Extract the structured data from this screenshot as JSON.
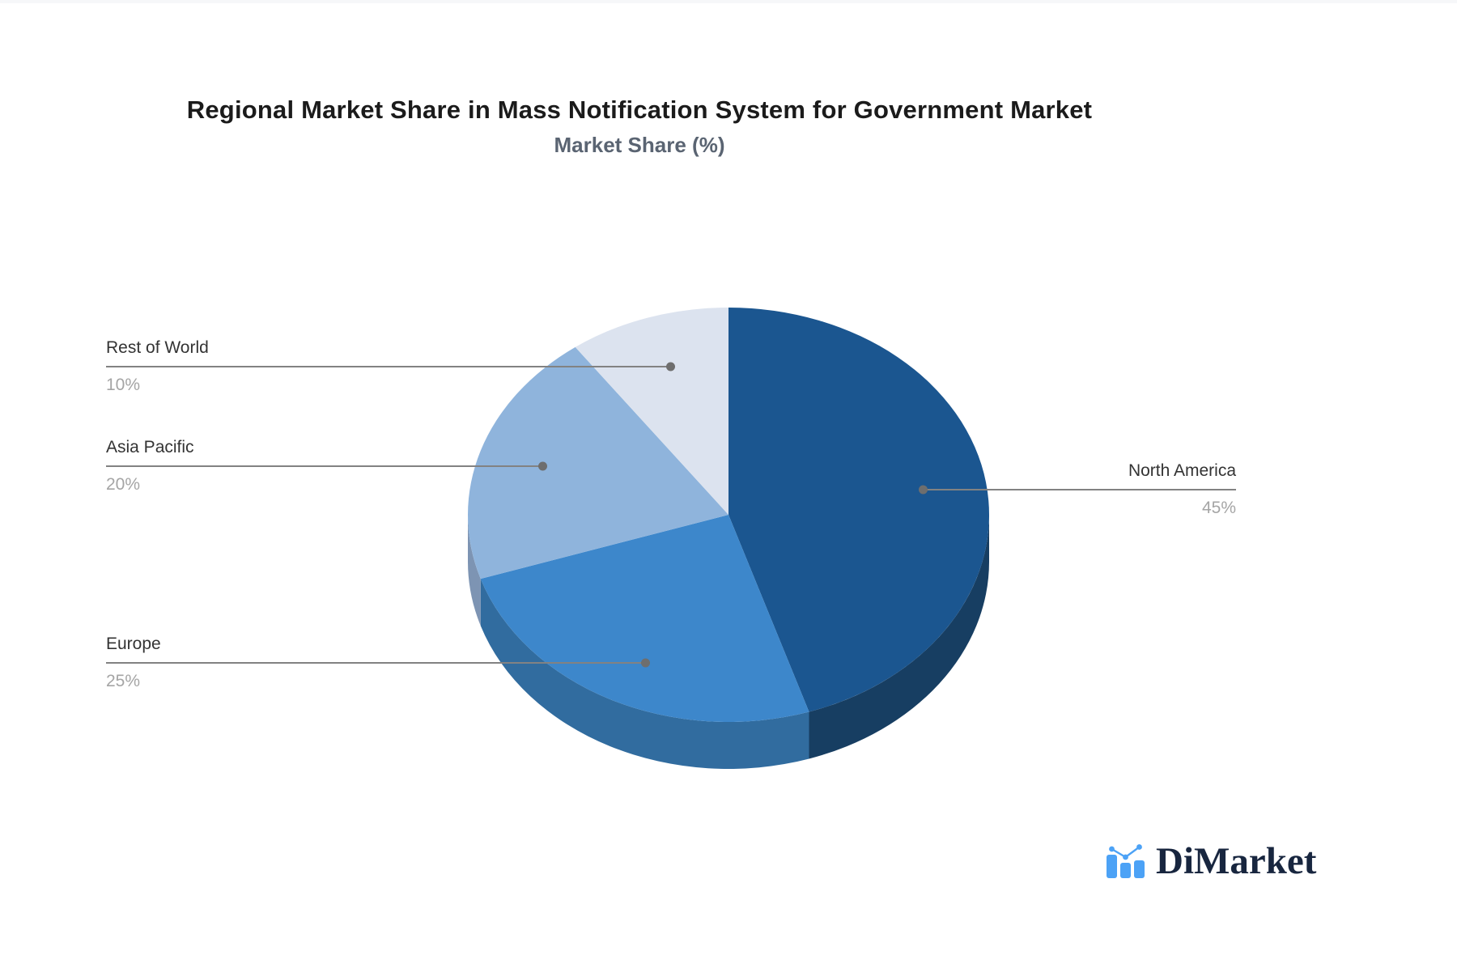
{
  "header": {
    "title": "Regional Market Share in Mass Notification System for Government Market",
    "subtitle": "Market Share (%)"
  },
  "chart_data": {
    "type": "pie",
    "style": "3d",
    "title": "Regional Market Share in Mass Notification System for Government Market",
    "subtitle": "Market Share (%)",
    "unit": "%",
    "total": 100,
    "start_angle_deg": -90,
    "direction": "clockwise",
    "legend_position": "callout-labels",
    "slices": [
      {
        "label": "North America",
        "value": 45,
        "display": "45%",
        "color": "#1B5690",
        "side_color": "#173E62"
      },
      {
        "label": "Europe",
        "value": 25,
        "display": "25%",
        "color": "#3D87CB",
        "side_color": "#316C9F"
      },
      {
        "label": "Asia Pacific",
        "value": 20,
        "display": "20%",
        "color": "#8FB4DC",
        "side_color": "#7D94B3"
      },
      {
        "label": "Rest of World",
        "value": 10,
        "display": "10%",
        "color": "#DCE3EF",
        "side_color": "#C8D1E0"
      }
    ],
    "leader_line_color": "#828282",
    "leader_dot_color": "#6E6E6E"
  },
  "logo": {
    "text": "DiMarket",
    "icon": "bar-chart-trend-icon",
    "icon_color": "#4CA2F6",
    "text_color": "#18263F"
  }
}
